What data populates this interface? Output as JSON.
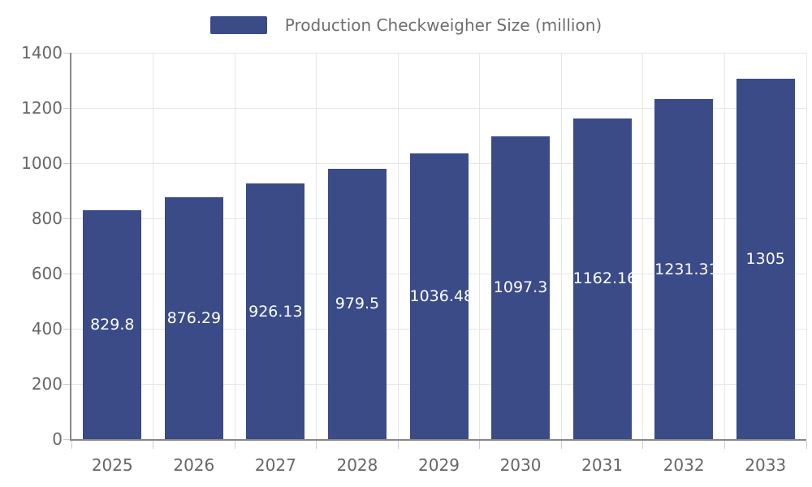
{
  "chart_data": {
    "type": "bar",
    "title": "Production Checkweigher Size (million)",
    "legend": [
      "Production Checkweigher Size (million)"
    ],
    "legend_position": "top",
    "categories": [
      "2025",
      "2026",
      "2027",
      "2028",
      "2029",
      "2030",
      "2031",
      "2032",
      "2033"
    ],
    "series": [
      {
        "name": "Production Checkweigher Size (million)",
        "values": [
          829.8,
          876.29,
          926.13,
          979.5,
          1036.48,
          1097.3,
          1162.16,
          1231.31,
          1305
        ],
        "labels": [
          "829.8",
          "876.29",
          "926.13",
          "979.5",
          "1036.48",
          "1097.3",
          "1162.16",
          "1231.31",
          "1305"
        ]
      }
    ],
    "xlabel": "",
    "ylabel": "",
    "ylim": [
      0,
      1400
    ],
    "yticks": [
      0,
      200,
      400,
      600,
      800,
      1000,
      1200,
      1400
    ],
    "grid": true,
    "value_labels_position": "inside-center",
    "colors": {
      "bar": "#3A4B88",
      "bar_label": "#FFFFFF",
      "grid": "#E6E6E6",
      "axis": "#888888",
      "tick": "#CCCCCC",
      "tick_label": "#666666",
      "title": "#6E6E6E",
      "background": "#FFFFFF"
    }
  }
}
